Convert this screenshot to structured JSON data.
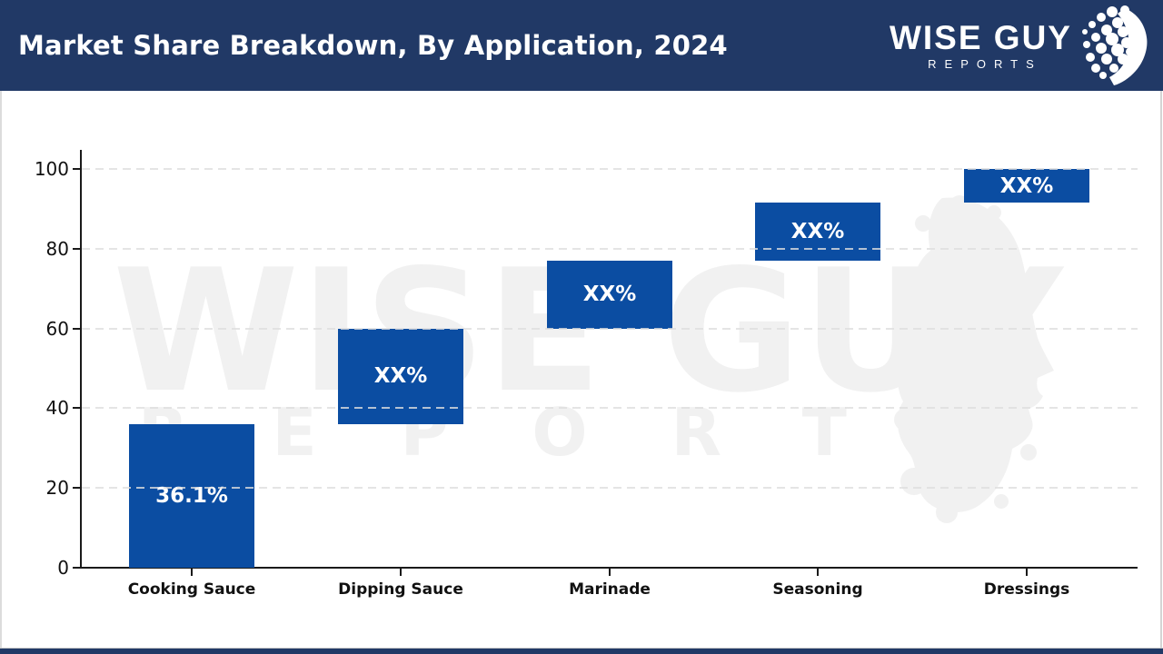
{
  "header": {
    "title": "Market Share Breakdown, By Application, 2024"
  },
  "logo": {
    "line1": "WISE GUY",
    "line2": "REPORTS"
  },
  "watermark": {
    "line1": "WISE GUY",
    "line2": "REPORTS"
  },
  "colors": {
    "header_bg": "#213966",
    "bar": "#0B4DA2",
    "bar_label": "#FFFFFF",
    "watermark": "#F1F1F1",
    "grid": "#DEDEDE",
    "axis": "#1A1A1A"
  },
  "chart_data": {
    "type": "bar",
    "subtype": "waterfall",
    "title": "Market Share Breakdown, By Application, 2024",
    "categories": [
      "Cooking Sauce",
      "Dipping Sauce",
      "Marinade",
      "Seasoning",
      "Dressings"
    ],
    "series": [
      {
        "name": "Market Share",
        "bars": [
          {
            "category": "Cooking Sauce",
            "start": 0,
            "end": 36.1,
            "label": "36.1%"
          },
          {
            "category": "Dipping Sauce",
            "start": 36.1,
            "end": 60,
            "label": "XX%"
          },
          {
            "category": "Marinade",
            "start": 60,
            "end": 77,
            "label": "XX%"
          },
          {
            "category": "Seasoning",
            "start": 77,
            "end": 91.5,
            "label": "XX%"
          },
          {
            "category": "Dressings",
            "start": 91.5,
            "end": 100,
            "label": "XX%"
          }
        ]
      }
    ],
    "xlabel": "",
    "ylabel": "",
    "ylim": [
      0,
      100
    ],
    "yticks": [
      0,
      20,
      40,
      60,
      80,
      100
    ],
    "grid": "horizontal-dashed",
    "legend": "none"
  }
}
